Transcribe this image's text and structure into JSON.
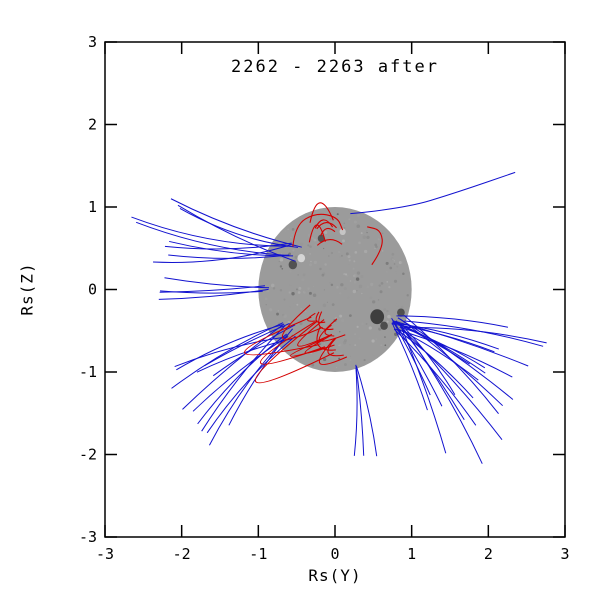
{
  "chart_data": {
    "type": "line",
    "title": "2262 - 2263 after",
    "xlabel": "Rs(Y)",
    "ylabel": "Rs(Z)",
    "xlim": [
      -3,
      3
    ],
    "ylim": [
      -3,
      3
    ],
    "grid": false,
    "xtick_values": [
      -3,
      -2,
      -1,
      0,
      1,
      2,
      3
    ],
    "xtick_labels": [
      "-3",
      "-2",
      "-1",
      "0",
      "1",
      "2",
      "3"
    ],
    "ytick_values": [
      -3,
      -2,
      -1,
      0,
      1,
      2,
      3
    ],
    "ytick_labels": [
      "-3",
      "-2",
      "-1",
      "0",
      "1",
      "2",
      "3"
    ],
    "colors": {
      "axis": "#000000",
      "background": "#ffffff",
      "open_field": "#1212cf",
      "closed_field": "#d40000",
      "sun_disk": "#9b9b9b"
    },
    "sun": {
      "center": [
        0,
        0
      ],
      "radius": 1,
      "fill": "#9b9b9b",
      "features": [
        {
          "x": 0.55,
          "y": -0.33,
          "r": 0.09,
          "color": "#2e2e2e",
          "opacity": 0.85
        },
        {
          "x": 0.64,
          "y": -0.44,
          "r": 0.05,
          "color": "#3a3a3a",
          "opacity": 0.8
        },
        {
          "x": -0.55,
          "y": 0.3,
          "r": 0.055,
          "color": "#404040",
          "opacity": 0.8
        },
        {
          "x": -0.44,
          "y": 0.38,
          "r": 0.05,
          "color": "#dcdcdc",
          "opacity": 0.9
        },
        {
          "x": -0.18,
          "y": 0.62,
          "r": 0.045,
          "color": "#3c3c3c",
          "opacity": 0.75
        },
        {
          "x": 0.1,
          "y": 0.7,
          "r": 0.04,
          "color": "#d0d0d0",
          "opacity": 0.8
        },
        {
          "x": 0.86,
          "y": -0.28,
          "r": 0.05,
          "color": "#303030",
          "opacity": 0.7
        }
      ],
      "speckle_count": 240
    },
    "seed": 42,
    "open_field_lines": {
      "color": "#1212cf",
      "fans": [
        {
          "name": "upper-left",
          "origin": [
            -0.5,
            0.45
          ],
          "jitter": 0.12,
          "angle": 171,
          "spread": 30,
          "len": [
            1.5,
            2.1
          ],
          "bend": 8,
          "count": 9
        },
        {
          "name": "left-horizontal",
          "origin": [
            -0.9,
            0.02
          ],
          "jitter": 0.05,
          "angle": 181,
          "spread": 10,
          "len": [
            1.3,
            1.75
          ],
          "bend": 3,
          "count": 4
        },
        {
          "name": "lower-left",
          "origin": [
            -0.6,
            -0.5
          ],
          "jitter": 0.1,
          "angle": 215,
          "spread": 42,
          "len": [
            1.1,
            1.75
          ],
          "bend": -6,
          "count": 13
        },
        {
          "name": "lower-right",
          "origin": [
            0.82,
            -0.4
          ],
          "jitter": 0.09,
          "angle": -36,
          "spread": 64,
          "len": [
            1.0,
            2.05
          ],
          "bend": 5,
          "count": 24
        },
        {
          "name": "bottom-center",
          "origin": [
            0.3,
            -0.95
          ],
          "jitter": 0.06,
          "angle": -84,
          "spread": 14,
          "len": [
            1.0,
            1.2
          ],
          "bend": 4,
          "count": 3
        }
      ],
      "extra_polylines": [
        [
          [
            0.2,
            0.92
          ],
          [
            0.9,
            0.98
          ],
          [
            1.6,
            1.18
          ],
          [
            2.35,
            1.42
          ]
        ]
      ]
    },
    "closed_field_lines": {
      "color": "#d40000",
      "clusters": [
        {
          "name": "top-loops",
          "center": [
            -0.2,
            0.68
          ],
          "dir": 95,
          "sep": [
            0.12,
            0.4
          ],
          "apex": [
            0.06,
            0.28
          ],
          "count": 6,
          "jitter": 0.18
        },
        {
          "name": "bottom-loops",
          "center": [
            -0.05,
            -0.52
          ],
          "dir": 205,
          "sep": [
            0.08,
            0.35
          ],
          "apex": [
            0.08,
            0.55
          ],
          "count": 12,
          "jitter": 0.2
        },
        {
          "name": "bottom-large-loops",
          "center": [
            -0.2,
            -0.5
          ],
          "dir": 200,
          "sep": [
            0.25,
            0.45
          ],
          "apex": [
            0.7,
            1.15
          ],
          "count": 3,
          "jitter": 0.1
        }
      ],
      "extra_polylines": [
        [
          [
            0.48,
            0.3
          ],
          [
            0.63,
            0.5
          ],
          [
            0.6,
            0.72
          ],
          [
            0.42,
            0.76
          ]
        ],
        [
          [
            -0.55,
            0.52
          ],
          [
            -0.52,
            0.78
          ],
          [
            -0.25,
            0.93
          ],
          [
            0.03,
            0.88
          ],
          [
            0.1,
            0.72
          ]
        ]
      ]
    }
  }
}
